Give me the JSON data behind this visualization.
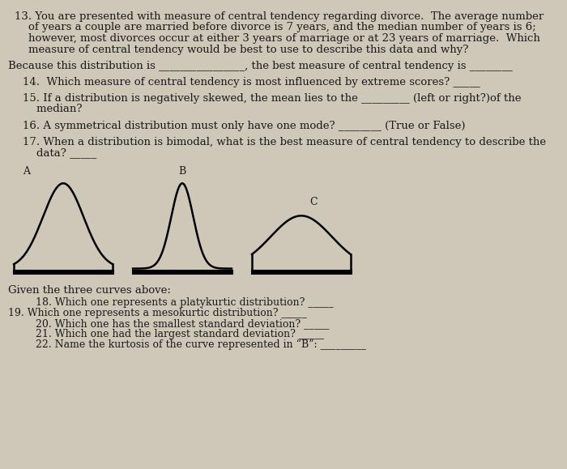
{
  "background_color": "#cfc8b8",
  "text_color": "#1a1a1a",
  "font_size_body": 9.5,
  "font_size_small": 9.0,
  "q13_lines": [
    "13. You are presented with measure of central tendency regarding divorce.  The average number",
    "    of years a couple are married before divorce is 7 years, and the median number of years is 6;",
    "    however, most divorces occur at either 3 years of marriage or at 23 years of marriage.  Which",
    "    measure of central tendency would be best to use to describe this data and why?"
  ],
  "q13_answer": "Because this distribution is ________________, the best measure of central tendency is ________",
  "q14": "14.  Which measure of central tendency is most influenced by extreme scores? _____",
  "q15a": "15. If a distribution is negatively skewed, the mean lies to the _________ (left or right?)of the",
  "q15b": "    median?",
  "q16": "16. A symmetrical distribution must only have one mode? ________ (True or False)",
  "q17a": "17. When a distribution is bimodal, what is the best measure of central tendency to describe the",
  "q17b": "    data? _____",
  "given_text": "Given the three curves above:",
  "q18": "    18. Which one represents a platykurtic distribution? _____",
  "q19": "19. Which one represents a mesokurtic distribution? _____",
  "q20": "    20. Which one has the smallest standard deviation? _____",
  "q21": "    21. Which one had the largest standard deviation? _____",
  "q22": "    22. Name the kurtosis of the curve represented in “B”: _________"
}
